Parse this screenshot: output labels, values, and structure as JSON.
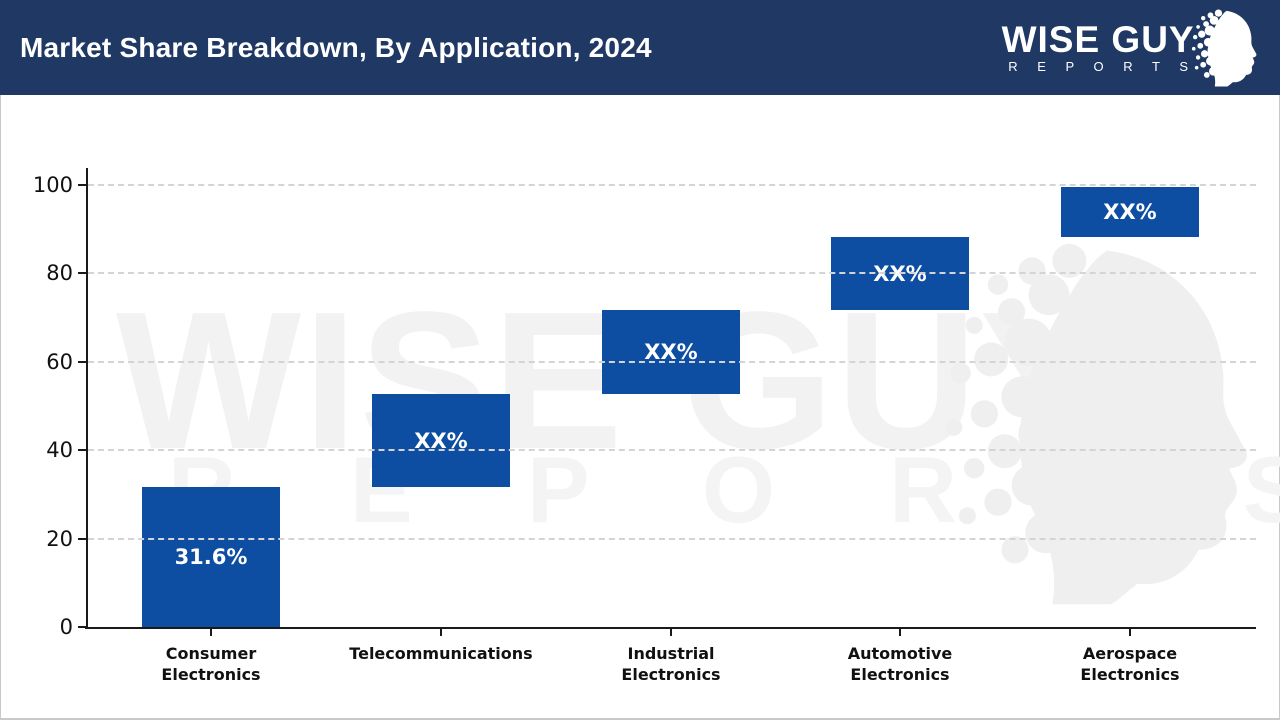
{
  "header": {
    "title": "Market Share Breakdown, By Application, 2024",
    "logo": {
      "line1": "WISE GUY",
      "line2": "R E P O R T S"
    }
  },
  "watermark": {
    "line1": "WISE GUY",
    "line2": "R E P O R T S"
  },
  "chart_data": {
    "type": "bar",
    "subtype": "waterfall-stacked-to-100",
    "title": "Market Share Breakdown, By Application, 2024",
    "categories": [
      "Consumer Electronics",
      "Telecommunications",
      "Industrial Electronics",
      "Automotive Electronics",
      "Aerospace Electronics"
    ],
    "bars": [
      {
        "category": "Consumer Electronics",
        "label_lines": [
          "Consumer",
          "Electronics"
        ],
        "value_label": "31.6%",
        "start": 0,
        "end": 31.6,
        "segment": 31.6
      },
      {
        "category": "Telecommunications",
        "label_lines": [
          "Telecommunications"
        ],
        "value_label": "XX%",
        "start": 31.6,
        "end": 52.7,
        "segment": 21.1
      },
      {
        "category": "Industrial Electronics",
        "label_lines": [
          "Industrial",
          "Electronics"
        ],
        "value_label": "XX%",
        "start": 52.7,
        "end": 71.7,
        "segment": 19.0
      },
      {
        "category": "Automotive Electronics",
        "label_lines": [
          "Automotive",
          "Electronics"
        ],
        "value_label": "XX%",
        "start": 71.7,
        "end": 88.2,
        "segment": 16.5
      },
      {
        "category": "Aerospace Electronics",
        "label_lines": [
          "Aerospace",
          "Electronics"
        ],
        "value_label": "XX%",
        "start": 88.2,
        "end": 99.5,
        "segment": 11.3
      }
    ],
    "y_ticks": [
      0,
      20,
      40,
      60,
      80,
      100
    ],
    "ylim": [
      0,
      104
    ],
    "xlabel": "",
    "ylabel": "",
    "grid": "dashed-horizontal-over-bars",
    "legend": "none",
    "bar_color": "#0d4da2",
    "bar_label_color": "#ffffff"
  },
  "colors": {
    "header_bg": "#1f3864",
    "bar": "#0d4da2",
    "grid": "#d4d4d4",
    "axis": "#1a1a1a",
    "watermark": "#f2f2f2",
    "page_border": "#c9c9c9"
  }
}
